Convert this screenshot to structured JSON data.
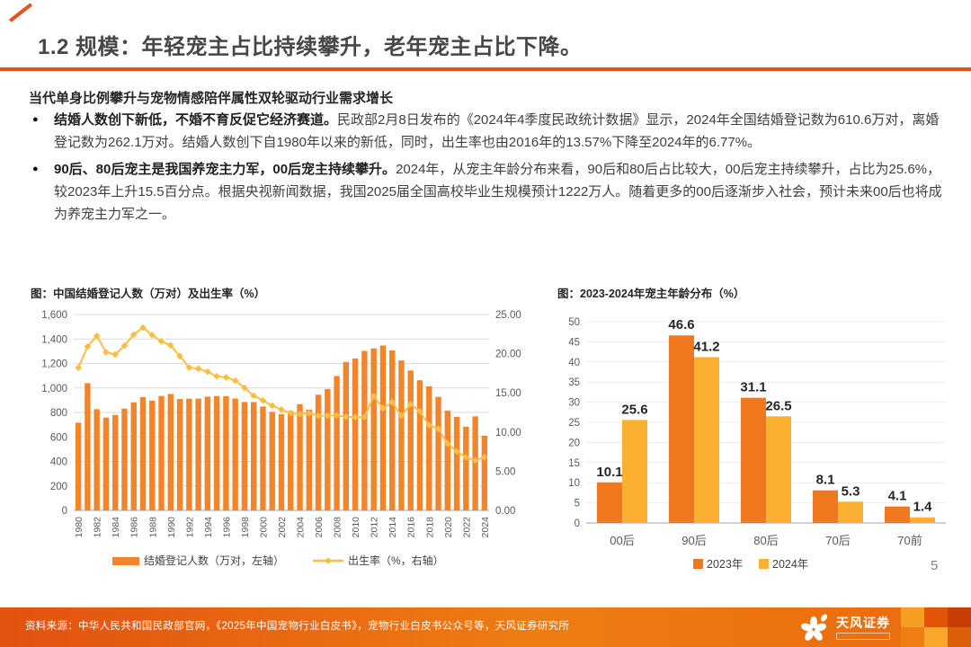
{
  "header": {
    "title": "1.2 规模：年轻宠主占比持续攀升，老年宠主占比下降。"
  },
  "intro_heading": "当代单身比例攀升与宠物情感陪伴属性双轮驱动行业需求增长",
  "bullets": [
    {
      "lead": "结婚人数创下新低，不婚不育反促它经济赛道。",
      "text": "民政部2月8日发布的《2024年4季度民政统计数据》显示，2024年全国结婚登记数为610.6万对，离婚登记数为262.1万对。结婚人数创下自1980年以来的新低，同时，出生率也由2016年的13.57%下降至2024年的6.77%。"
    },
    {
      "lead": "90后、80后宠主是我国养宠主力军，00后宠主持续攀升。",
      "text": "2024年，从宠主年龄分布来看，90后和80后占比较大，00后宠主持续攀升，占比为25.6%，较2023年上升15.5百分点。根据央视新闻数据，我国2025届全国高校毕业生规模预计1222万人。随着更多的00后逐渐步入社会，预计未来00后也将成为养宠主力军之一。"
    }
  ],
  "chart_data": [
    {
      "type": "bar+line",
      "title": "图：中国结婚登记人数（万对）及出生率（%）",
      "x": [
        1980,
        1981,
        1982,
        1983,
        1984,
        1985,
        1986,
        1987,
        1988,
        1989,
        1990,
        1991,
        1992,
        1993,
        1994,
        1995,
        1996,
        1997,
        1998,
        1999,
        2000,
        2001,
        2002,
        2003,
        2004,
        2005,
        2006,
        2007,
        2008,
        2009,
        2010,
        2011,
        2012,
        2013,
        2014,
        2015,
        2016,
        2017,
        2018,
        2019,
        2020,
        2021,
        2022,
        2023,
        2024
      ],
      "x_tick_every": 2,
      "series": [
        {
          "name": "结婚登记人数（万对，左轴）",
          "type": "bar",
          "axis": "left",
          "color": "#F2852B",
          "values": [
            716.6,
            1039.0,
            826.6,
            757.7,
            779.9,
            831.3,
            882.9,
            926.5,
            896.7,
            935.0,
            951.1,
            909.6,
            912.7,
            913.2,
            929.0,
            934.1,
            933.7,
            913.9,
            885.3,
            885.0,
            848.5,
            805.0,
            786.0,
            811.4,
            867.2,
            823.1,
            945.0,
            991.4,
            1098.3,
            1212.2,
            1241.0,
            1302.4,
            1323.6,
            1346.9,
            1306.7,
            1224.7,
            1142.8,
            1063.1,
            1013.9,
            927.3,
            814.3,
            764.3,
            683.5,
            768.2,
            610.6
          ]
        },
        {
          "name": "出生率（%，右轴）",
          "type": "line",
          "axis": "right",
          "color": "#FBBE44",
          "values": [
            18.21,
            20.91,
            22.28,
            20.19,
            19.9,
            21.04,
            22.43,
            23.33,
            22.37,
            21.58,
            21.06,
            19.68,
            18.24,
            18.09,
            17.7,
            17.12,
            16.98,
            16.57,
            15.64,
            14.64,
            14.03,
            13.38,
            12.86,
            12.41,
            12.29,
            12.4,
            12.09,
            12.1,
            12.14,
            11.95,
            11.9,
            11.93,
            14.57,
            13.03,
            13.83,
            12.07,
            13.57,
            12.64,
            10.86,
            10.41,
            8.52,
            7.52,
            6.77,
            6.39,
            6.77
          ]
        }
      ],
      "left_axis": {
        "min": 0,
        "max": 1600,
        "step": 200
      },
      "right_axis": {
        "min": 0,
        "max": 25,
        "step": 5,
        "decimals": 2
      },
      "grid": true,
      "legend_position": "bottom"
    },
    {
      "type": "bar",
      "title": "图：2023-2024年宠主年龄分布（%）",
      "categories": [
        "00后",
        "90后",
        "80后",
        "70后",
        "70前"
      ],
      "series": [
        {
          "name": "2023年",
          "color": "#F0791F",
          "values": [
            10.1,
            46.6,
            31.1,
            8.1,
            4.1
          ]
        },
        {
          "name": "2024年",
          "color": "#FBB030",
          "values": [
            25.6,
            41.2,
            26.5,
            5.3,
            1.4
          ]
        }
      ],
      "ylim": [
        0,
        50
      ],
      "ystep": 5,
      "grid": true,
      "legend_position": "bottom"
    }
  ],
  "page_number": "5",
  "footer": {
    "source": "资料来源：中华人民共和国民政部官网，《2025年中国宠物行业白皮书》，宠物行业白皮书公众号等，天风证券研究所",
    "logo_text": "天风证券",
    "mosaic_colors": [
      "#F59E22",
      "#E25408",
      "#C93D06",
      "#EE7D12",
      "#F9A82A",
      "#DD5E0B"
    ]
  },
  "colors": {
    "accent_orange": "#E6531C",
    "bar_orange": "#F2852B",
    "bar_amber": "#FBB030",
    "line_yellow": "#FBBE44",
    "text_dark": "#3F3F3F",
    "grid_gray": "#DBDBDB"
  }
}
